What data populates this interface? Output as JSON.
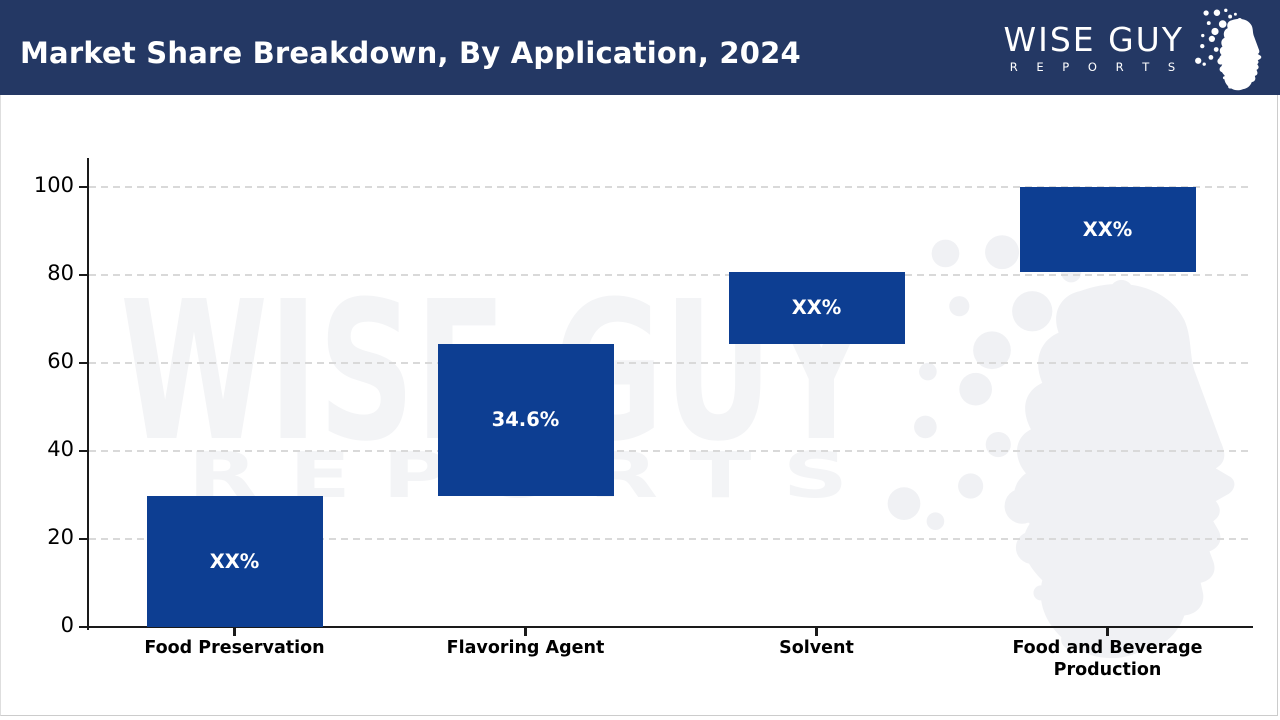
{
  "header": {
    "title": "Market Share Breakdown, By Application, 2024",
    "logo": {
      "wordmark": "WISE GUY",
      "tagline": "R E P O R T S"
    }
  },
  "watermark": {
    "line1": "WISE GUY",
    "line2": "R E P O R T S"
  },
  "chart_data": {
    "type": "bar",
    "subtype": "stacked-waterfall-segments",
    "title": "Market Share Breakdown, By Application, 2024",
    "categories": [
      "Food Preservation",
      "Flavoring Agent",
      "Solvent",
      "Food and Beverage Production"
    ],
    "series": [
      {
        "category": "Food Preservation",
        "label": "XX%",
        "start": 0,
        "end": 29.8
      },
      {
        "category": "Flavoring Agent",
        "label": "34.6%",
        "start": 29.8,
        "end": 64.4
      },
      {
        "category": "Solvent",
        "label": "XX%",
        "start": 64.4,
        "end": 80.6
      },
      {
        "category": "Food and Beverage Production",
        "label": "XX%",
        "start": 80.6,
        "end": 100
      }
    ],
    "xlabel": "",
    "ylabel": "",
    "ylim": [
      0,
      100
    ],
    "yticks": [
      0,
      20,
      40,
      60,
      80,
      100
    ],
    "grid": {
      "horizontal": true,
      "style": "dashed"
    },
    "legend": "none",
    "bar_color": "#0d3e92",
    "bar_label_color": "#ffffff"
  },
  "colors": {
    "header_bg": "#243864",
    "bar": "#0d3e92",
    "gridline": "#d9d9d9",
    "axis": "#1a1a1a",
    "watermark": "#f3f4f6"
  }
}
